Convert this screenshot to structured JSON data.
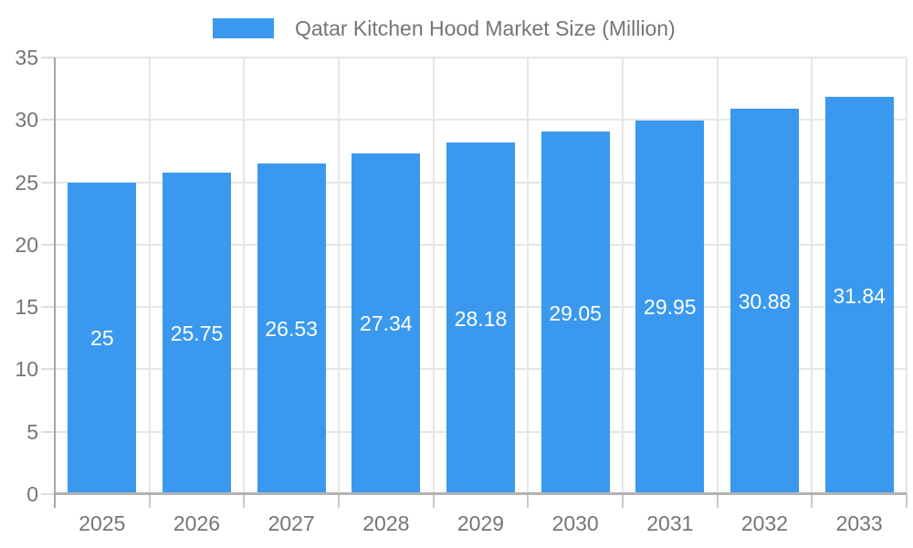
{
  "legend": {
    "label": "Qatar Kitchen Hood Market Size (Million)",
    "swatch_color": "#3a99ee"
  },
  "chart_data": {
    "type": "bar",
    "title": "Qatar Kitchen Hood Market Size (Million)",
    "categories": [
      "2025",
      "2026",
      "2027",
      "2028",
      "2029",
      "2030",
      "2031",
      "2032",
      "2033"
    ],
    "series": [
      {
        "name": "Qatar Kitchen Hood Market Size (Million)",
        "values": [
          25,
          25.75,
          26.53,
          27.34,
          28.18,
          29.05,
          29.95,
          30.88,
          31.84
        ],
        "labels": [
          "25",
          "25.75",
          "26.53",
          "27.34",
          "28.18",
          "29.05",
          "29.95",
          "30.88",
          "31.84"
        ],
        "color": "#3a99ee"
      }
    ],
    "xlabel": "",
    "ylabel": "",
    "ylim": [
      0,
      35
    ],
    "yticks": [
      0,
      5,
      10,
      15,
      20,
      25,
      30,
      35
    ],
    "grid": true,
    "legend_position": "top",
    "value_labels_inside_bars": true
  },
  "colors": {
    "bar": "#3a99ee",
    "grid_line": "#e6e6e6",
    "axis_line": "#a6a6a6",
    "baseline": "#b3b3b3",
    "y_tick_mark": "#dddddd",
    "x_tick_mark": "#c9c9c9",
    "tick_text": "#757575",
    "legend_text": "#757575",
    "bar_value_text": "#ffffff",
    "background": "#ffffff"
  }
}
